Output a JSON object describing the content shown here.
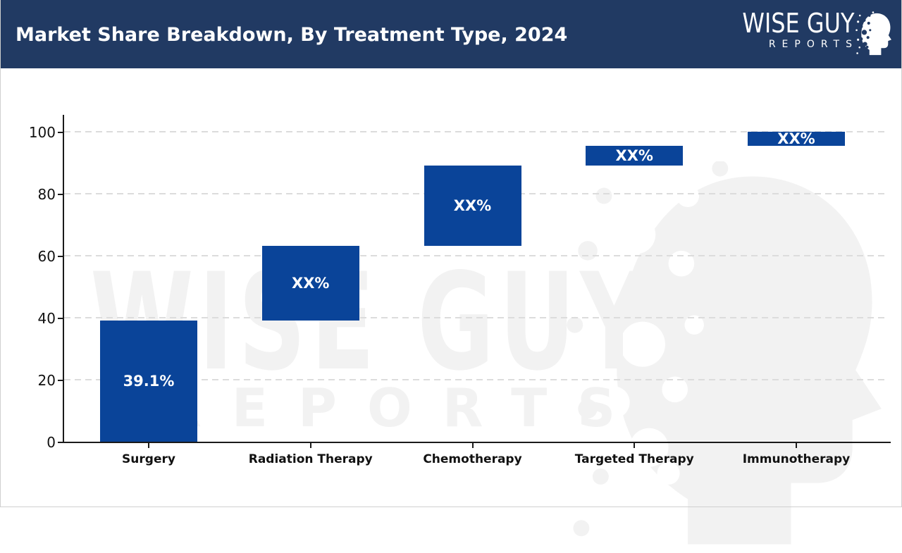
{
  "header": {
    "title": "Market Share Breakdown, By Treatment Type, 2024",
    "logo": {
      "line1": "WISE GUY",
      "line2": "REPORTS"
    }
  },
  "watermark": {
    "line1": "WISE GUY",
    "line2": "REPORTS"
  },
  "colors": {
    "header_bg": "#213a63",
    "bar": "#0a4499",
    "bar_label": "#ffffff",
    "grid": "#dcdcdc",
    "axis": "#1a1a1a",
    "watermark": "#f2f2f2"
  },
  "chart_data": {
    "type": "bar",
    "subtype": "waterfall",
    "title": "Market Share Breakdown, By Treatment Type, 2024",
    "xlabel": "",
    "ylabel": "",
    "categories": [
      "Surgery",
      "Radiation Therapy",
      "Chemotherapy",
      "Targeted Therapy",
      "Immunotherapy"
    ],
    "segments": [
      {
        "category": "Surgery",
        "label": "39.1%",
        "start": 0,
        "end": 39.1
      },
      {
        "category": "Radiation Therapy",
        "label": "XX%",
        "start": 39.1,
        "end": 63.1
      },
      {
        "category": "Chemotherapy",
        "label": "XX%",
        "start": 63.1,
        "end": 89.1
      },
      {
        "category": "Targeted Therapy",
        "label": "XX%",
        "start": 89.1,
        "end": 95.5
      },
      {
        "category": "Immunotherapy",
        "label": "XX%",
        "start": 95.5,
        "end": 100
      }
    ],
    "yticks": [
      0,
      20,
      40,
      60,
      80,
      100
    ],
    "ylim": [
      0,
      105.5
    ],
    "grid": "horizontal-dashed",
    "legend_position": "none",
    "bar_color": "#0a4499"
  }
}
